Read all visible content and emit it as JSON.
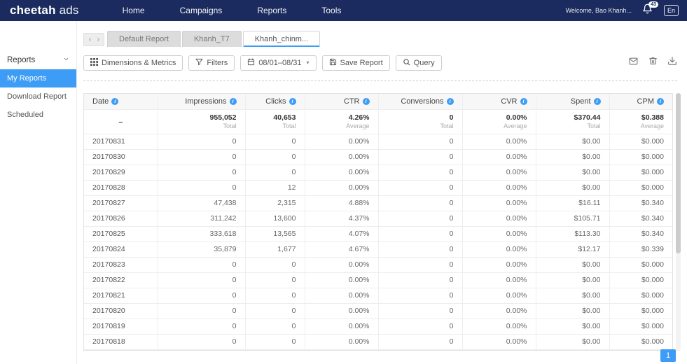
{
  "navbar": {
    "brand_bold": "cheetah",
    "brand_light": " ads",
    "items": [
      {
        "label": "Home"
      },
      {
        "label": "Campaigns"
      },
      {
        "label": "Reports"
      },
      {
        "label": "Tools"
      }
    ],
    "welcome": "Welcome,  Bao Khanh...",
    "notification_count": "43",
    "language": "En"
  },
  "sidebar": {
    "section_label": "Reports",
    "items": [
      {
        "label": "My Reports",
        "active": true
      },
      {
        "label": "Download Report",
        "active": false
      },
      {
        "label": "Scheduled",
        "active": false
      }
    ]
  },
  "tabs": [
    {
      "label": "Default Report",
      "active": false
    },
    {
      "label": "Khanh_T7",
      "active": false
    },
    {
      "label": "Khanh_chinm...",
      "active": true
    }
  ],
  "toolbar": {
    "dimensions_metrics_label": "Dimensions & Metrics",
    "filters_label": "Filters",
    "date_range": "08/01–08/31",
    "save_report_label": "Save Report",
    "query_label": "Query"
  },
  "table": {
    "columns": [
      "Date",
      "Impressions",
      "Clicks",
      "CTR",
      "Conversions",
      "CVR",
      "Spent",
      "CPM"
    ],
    "summary": {
      "values": [
        "–",
        "955,052",
        "40,653",
        "4.26%",
        "0",
        "0.00%",
        "$370.44",
        "$0.388"
      ],
      "sublabels": [
        "",
        "Total",
        "Total",
        "Average",
        "Total",
        "Average",
        "Total",
        "Average"
      ]
    },
    "rows": [
      [
        "20170831",
        "0",
        "0",
        "0.00%",
        "0",
        "0.00%",
        "$0.00",
        "$0.000"
      ],
      [
        "20170830",
        "0",
        "0",
        "0.00%",
        "0",
        "0.00%",
        "$0.00",
        "$0.000"
      ],
      [
        "20170829",
        "0",
        "0",
        "0.00%",
        "0",
        "0.00%",
        "$0.00",
        "$0.000"
      ],
      [
        "20170828",
        "0",
        "12",
        "0.00%",
        "0",
        "0.00%",
        "$0.00",
        "$0.000"
      ],
      [
        "20170827",
        "47,438",
        "2,315",
        "4.88%",
        "0",
        "0.00%",
        "$16.11",
        "$0.340"
      ],
      [
        "20170826",
        "311,242",
        "13,600",
        "4.37%",
        "0",
        "0.00%",
        "$105.71",
        "$0.340"
      ],
      [
        "20170825",
        "333,618",
        "13,565",
        "4.07%",
        "0",
        "0.00%",
        "$113.30",
        "$0.340"
      ],
      [
        "20170824",
        "35,879",
        "1,677",
        "4.67%",
        "0",
        "0.00%",
        "$12.17",
        "$0.339"
      ],
      [
        "20170823",
        "0",
        "0",
        "0.00%",
        "0",
        "0.00%",
        "$0.00",
        "$0.000"
      ],
      [
        "20170822",
        "0",
        "0",
        "0.00%",
        "0",
        "0.00%",
        "$0.00",
        "$0.000"
      ],
      [
        "20170821",
        "0",
        "0",
        "0.00%",
        "0",
        "0.00%",
        "$0.00",
        "$0.000"
      ],
      [
        "20170820",
        "0",
        "0",
        "0.00%",
        "0",
        "0.00%",
        "$0.00",
        "$0.000"
      ],
      [
        "20170819",
        "0",
        "0",
        "0.00%",
        "0",
        "0.00%",
        "$0.00",
        "$0.000"
      ],
      [
        "20170818",
        "0",
        "0",
        "0.00%",
        "0",
        "0.00%",
        "$0.00",
        "$0.000"
      ]
    ]
  },
  "pagination": {
    "page": "1"
  },
  "colors": {
    "accent_blue": "#3d9cf5",
    "navbar_navy": "#1b2b5f"
  }
}
